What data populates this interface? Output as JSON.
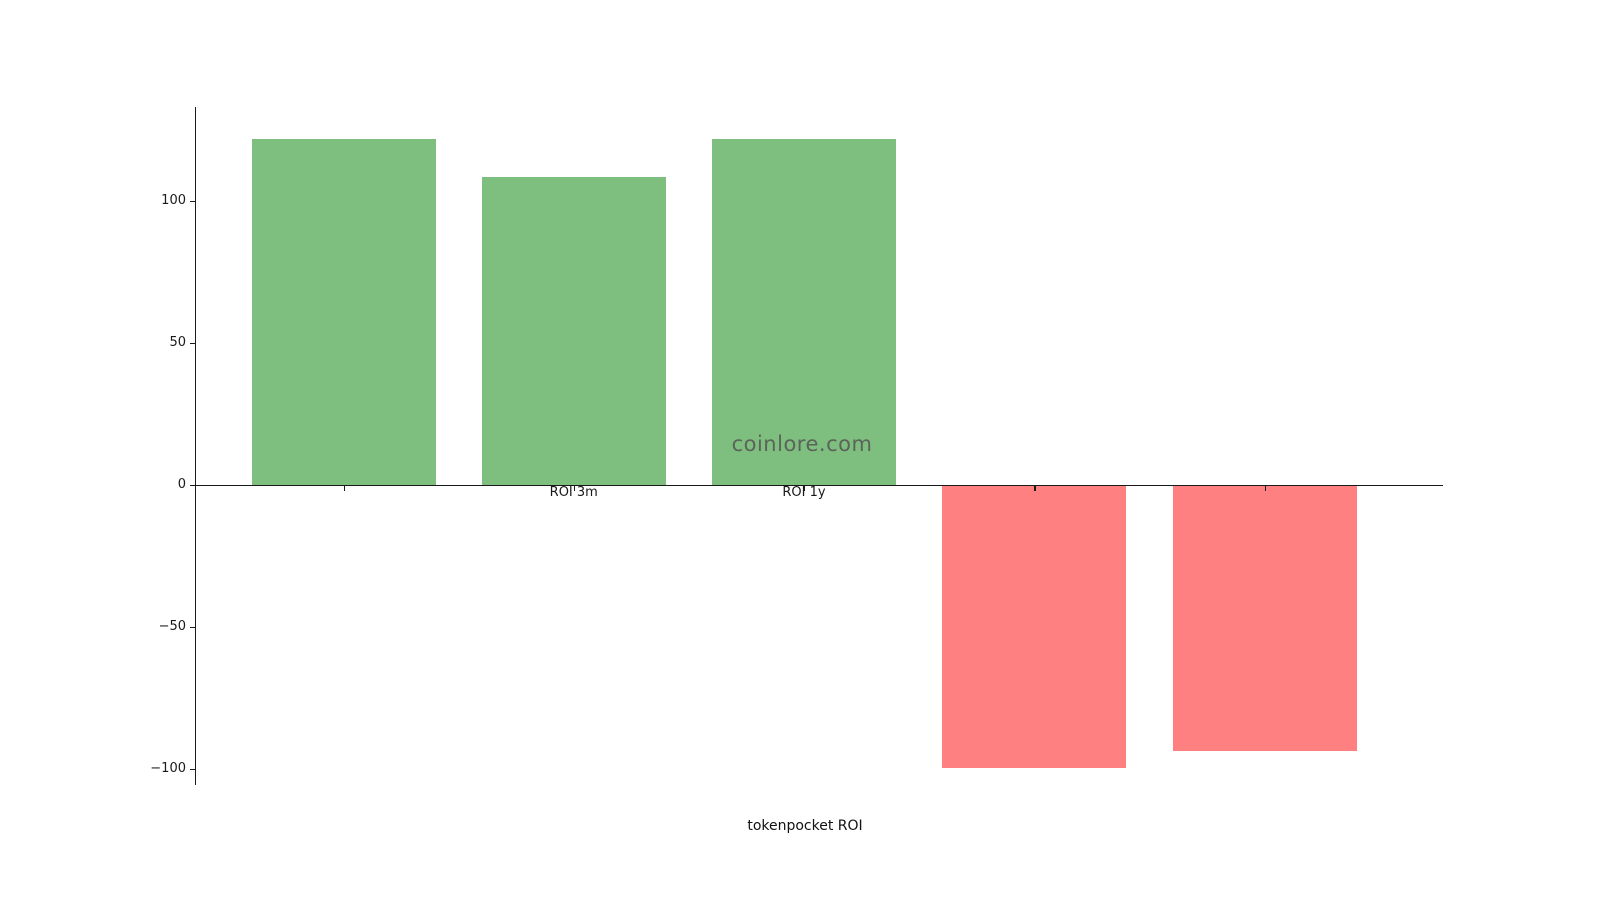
{
  "chart_data": {
    "type": "bar",
    "categories": [
      "",
      "ROI 3m",
      "ROI 1y",
      "",
      ""
    ],
    "values": [
      122,
      108.6,
      122,
      -99.8,
      -93.8
    ],
    "title": "",
    "xlabel": "tokenpocket ROI",
    "ylabel": "",
    "ytick_values": [
      100,
      50,
      0,
      -50,
      -100
    ],
    "ytick_labels": [
      "100",
      "50",
      "0",
      "−50",
      "−100"
    ],
    "ylim": [
      -105,
      133
    ],
    "grid": false,
    "legend": false,
    "positive_color": "#7ebe7e",
    "negative_color": "#ff8080",
    "axis_color": "#1a1a1a"
  },
  "watermark": {
    "text": "coinlore.com",
    "color": "#555555"
  }
}
